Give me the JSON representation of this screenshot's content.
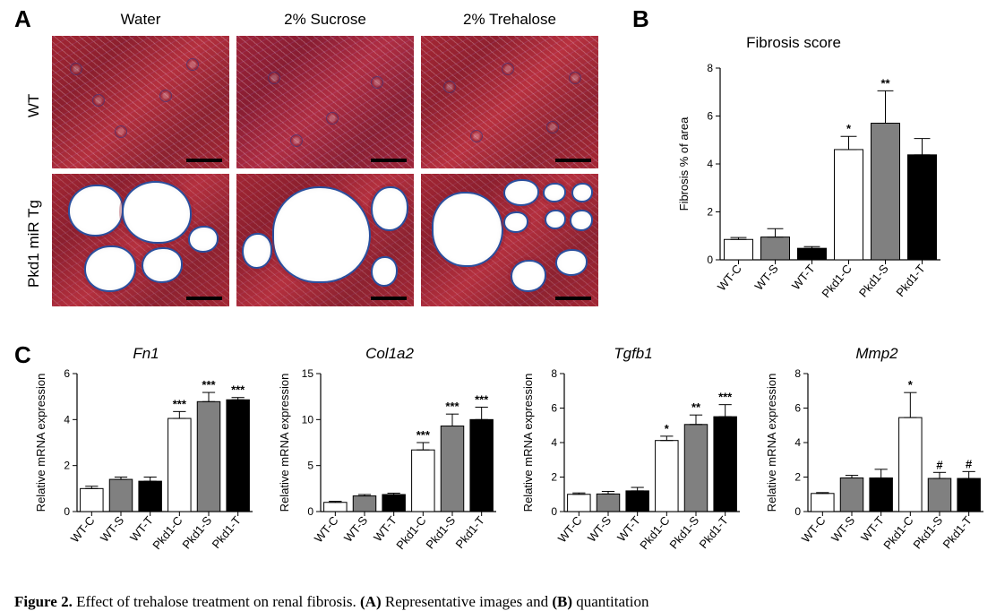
{
  "panelA": {
    "letter": "A",
    "columns": [
      "Water",
      "2% Sucrose",
      "2% Trehalose"
    ],
    "rows": [
      "WT",
      "Pkd1 miR Tg"
    ]
  },
  "panelB": {
    "letter": "B",
    "title": "Fibrosis score",
    "ylabel": "Fibrosis % of area",
    "ylim": [
      0,
      8
    ],
    "ytick_step": 2,
    "categories": [
      "WT-C",
      "WT-S",
      "WT-T",
      "Pkd1-C",
      "Pkd1-S",
      "Pkd1-T"
    ],
    "values": [
      0.85,
      0.95,
      0.48,
      4.6,
      5.7,
      4.38
    ],
    "errors": [
      0.08,
      0.35,
      0.07,
      0.55,
      1.35,
      0.68
    ],
    "bar_colors": [
      "#ffffff",
      "#808080",
      "#000000",
      "#ffffff",
      "#808080",
      "#000000"
    ],
    "sig": [
      "",
      "",
      "",
      "*",
      "**",
      ""
    ],
    "bar_width": 0.78,
    "axis_color": "#000000",
    "tick_fontsize": 12,
    "label_fontsize": 13,
    "background": "#ffffff"
  },
  "panelC": {
    "letter": "C",
    "ylabel": "Relative mRNA expression",
    "categories": [
      "WT-C",
      "WT-S",
      "WT-T",
      "Pkd1-C",
      "Pkd1-S",
      "Pkd1-T"
    ],
    "bar_colors": [
      "#ffffff",
      "#808080",
      "#000000",
      "#ffffff",
      "#808080",
      "#000000"
    ],
    "axis_color": "#000000",
    "bar_width": 0.78,
    "charts": [
      {
        "title": "Fn1",
        "ylim": [
          0,
          6
        ],
        "ytick_step": 2,
        "values": [
          1.0,
          1.4,
          1.32,
          4.05,
          4.78,
          4.86
        ],
        "errors": [
          0.1,
          0.1,
          0.18,
          0.3,
          0.4,
          0.1
        ],
        "sig": [
          "",
          "",
          "",
          "***",
          "***",
          "***"
        ]
      },
      {
        "title": "Col1a2",
        "ylim": [
          0,
          15
        ],
        "ytick_step": 5,
        "values": [
          1.0,
          1.7,
          1.85,
          6.7,
          9.3,
          10.0
        ],
        "errors": [
          0.12,
          0.15,
          0.15,
          0.8,
          1.3,
          1.35
        ],
        "sig": [
          "",
          "",
          "",
          "***",
          "***",
          "***"
        ]
      },
      {
        "title": "Tgfb1",
        "ylim": [
          0,
          8
        ],
        "ytick_step": 2,
        "values": [
          1.0,
          1.02,
          1.2,
          4.12,
          5.05,
          5.5
        ],
        "errors": [
          0.08,
          0.15,
          0.2,
          0.25,
          0.55,
          0.7
        ],
        "sig": [
          "",
          "",
          "",
          "*",
          "**",
          "***"
        ]
      },
      {
        "title": "Mmp2",
        "ylim": [
          0,
          8
        ],
        "ytick_step": 2,
        "values": [
          1.05,
          1.95,
          1.95,
          5.45,
          1.92,
          1.92
        ],
        "errors": [
          0.05,
          0.15,
          0.5,
          1.45,
          0.35,
          0.4
        ],
        "sig": [
          "",
          "",
          "",
          "*",
          "#",
          "#"
        ]
      }
    ]
  },
  "caption_text": "Figure 2. Effect of trehalose treatment on renal fibrosis. (A) Representative images and (B) quantitation"
}
